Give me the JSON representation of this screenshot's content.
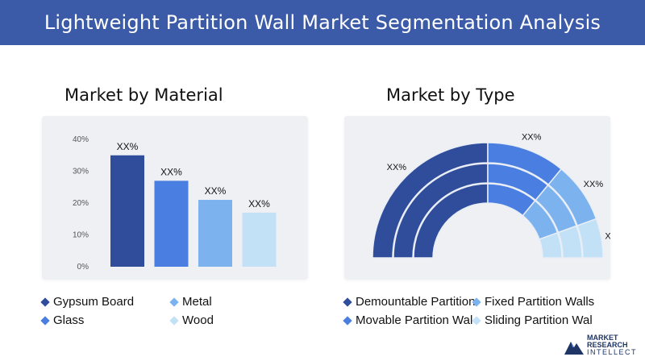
{
  "header": {
    "title": "Lightweight Partition Wall Market Segmentation Analysis"
  },
  "colors": {
    "header_bg": "#3b5ba8",
    "dark_blue": "#2f4d9a",
    "medium_blue": "#4a7ee0",
    "light_blue": "#7cb3ef",
    "pale_blue": "#c2e1f7"
  },
  "sections": {
    "material_title": "Market by Material",
    "type_title": "Market by Type"
  },
  "chart_data": [
    {
      "type": "bar",
      "title": "Market by Material",
      "categories": [
        "Gypsum Board",
        "Metal",
        "Glass",
        "Wood"
      ],
      "values": [
        35,
        27,
        21,
        17
      ],
      "data_labels": [
        "XX%",
        "XX%",
        "XX%",
        "XX%"
      ],
      "colors": [
        "#2f4d9a",
        "#4a7ee0",
        "#7cb3ef",
        "#c2e1f7"
      ],
      "ylim": [
        0,
        40
      ],
      "yticks": [
        0,
        10,
        20,
        30,
        40
      ],
      "ytick_labels": [
        "0%",
        "10%",
        "20%",
        "30%",
        "40%"
      ],
      "grid": false,
      "legend": [
        {
          "label": "Gypsum Board",
          "color": "#2f4d9a"
        },
        {
          "label": "Metal",
          "color": "#7cb3ef"
        },
        {
          "label": "Glass",
          "color": "#4a7ee0"
        },
        {
          "label": "Wood",
          "color": "#c2e1f7"
        }
      ]
    },
    {
      "type": "pie",
      "style": "semi-donut, 3 rings",
      "title": "Market by Type",
      "categories": [
        "Demountable Partition",
        "Fixed Partition Walls",
        "Movable Partition Wal",
        "Sliding Partition Wal"
      ],
      "values": [
        50,
        22,
        17,
        11
      ],
      "data_labels": [
        "XX%",
        "XX%",
        "XX%",
        "XX%"
      ],
      "colors": [
        "#2f4d9a",
        "#4a7ee0",
        "#7cb3ef",
        "#c2e1f7"
      ],
      "legend": [
        {
          "label": "Demountable Partition",
          "color": "#2f4d9a"
        },
        {
          "label": "Fixed Partition Walls",
          "color": "#7cb3ef"
        },
        {
          "label": "Movable Partition Wal",
          "color": "#4a7ee0"
        },
        {
          "label": "Sliding Partition Wal",
          "color": "#c2e1f7"
        }
      ]
    }
  ],
  "logo": {
    "line1": "MARKET",
    "line2": "RESEARCH",
    "line3": "INTELLECT",
    "icon": "mountain-logo-icon"
  }
}
